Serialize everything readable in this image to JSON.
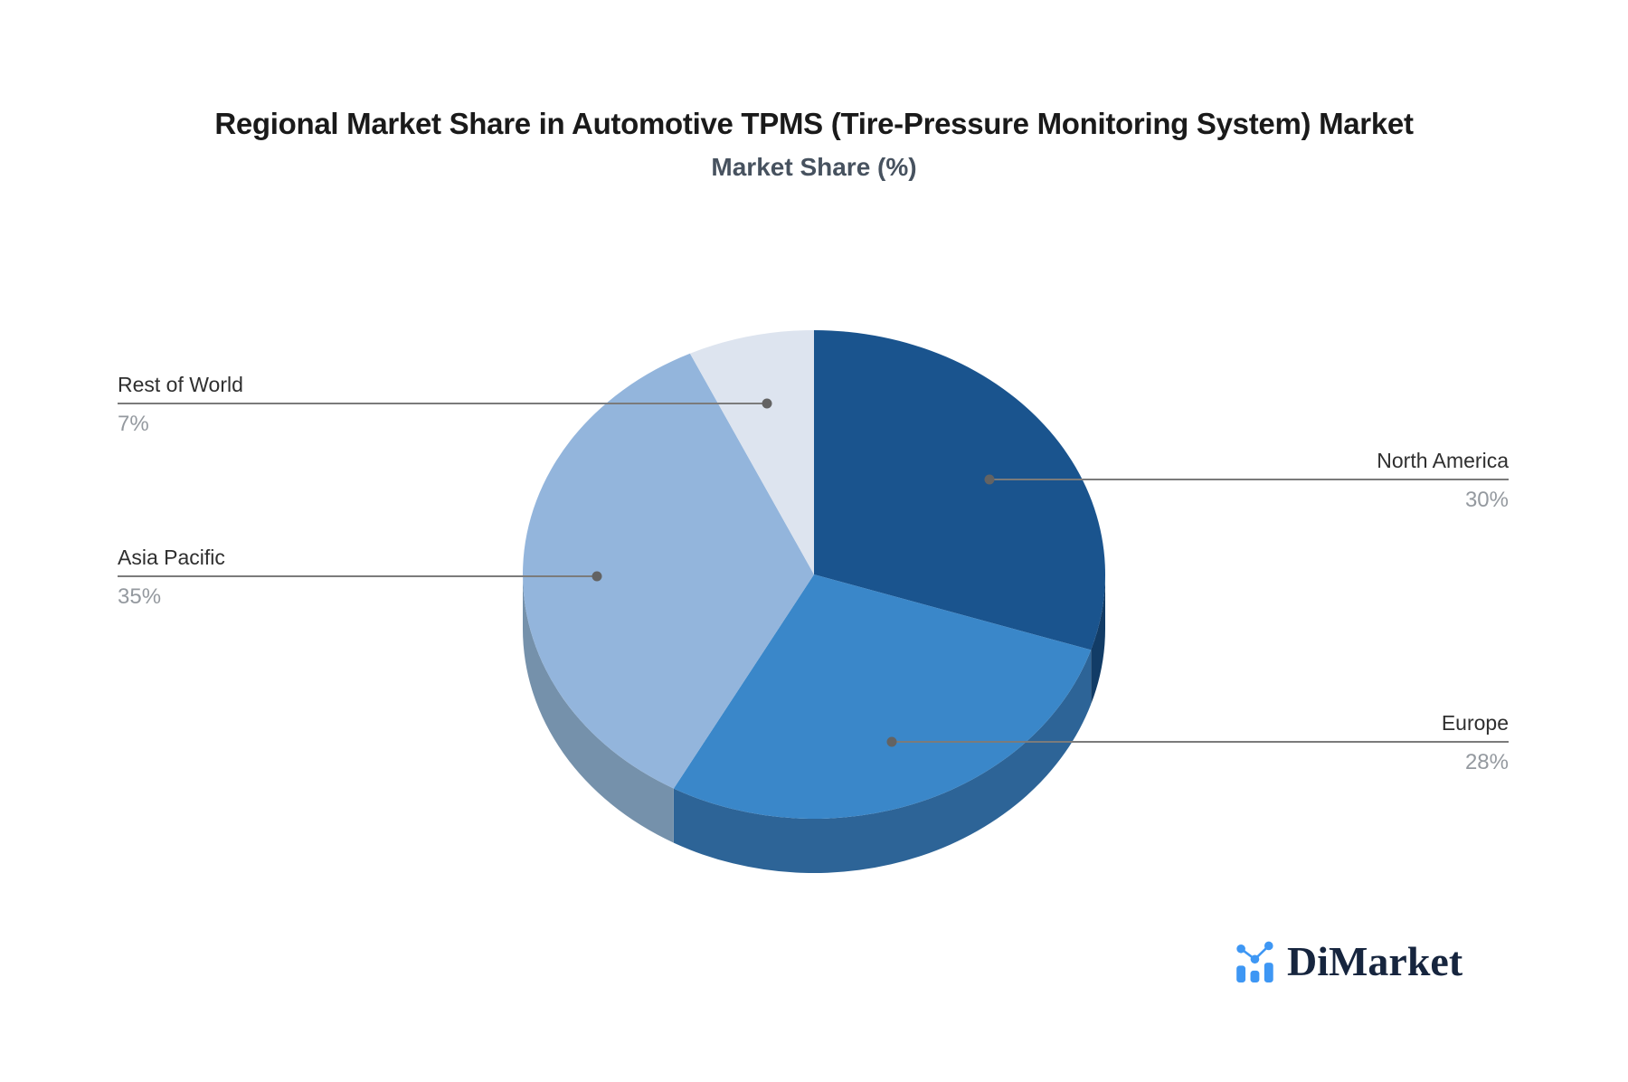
{
  "title": "Regional Market Share in Automotive TPMS (Tire-Pressure Monitoring System) Market",
  "subtitle": "Market Share (%)",
  "chart_data": {
    "type": "pie",
    "effect": "3d",
    "unit": "%",
    "start_angle_deg": 0,
    "direction": "clockwise",
    "legend": "none",
    "slices": [
      {
        "label": "North America",
        "value": 30,
        "display": "30%",
        "color": "#1a548e",
        "side_color": "#123c66",
        "label_side": "right"
      },
      {
        "label": "Europe",
        "value": 28,
        "display": "28%",
        "color": "#3a87c9",
        "side_color": "#2d6497",
        "label_side": "right"
      },
      {
        "label": "Asia Pacific",
        "value": 35,
        "display": "35%",
        "color": "#93b5dc",
        "side_color": "#7591ab",
        "label_side": "left"
      },
      {
        "label": "Rest of World",
        "value": 7,
        "display": "7%",
        "color": "#dde4ef",
        "side_color": "#aebdd2",
        "label_side": "left"
      }
    ]
  },
  "branding": {
    "logo_text": "DiMarket",
    "logo_icon": "bar-line-chart-icon",
    "logo_text_color": "#16253e",
    "logo_accent_color": "#3e97f4"
  },
  "colors": {
    "background": "#ffffff",
    "title": "#1a1a1a",
    "subtitle": "#47525f",
    "slice_label": "#2f2f2f",
    "slice_percent": "#94999f",
    "connector_line": "#7b7b7b",
    "connector_dot": "#636363"
  }
}
